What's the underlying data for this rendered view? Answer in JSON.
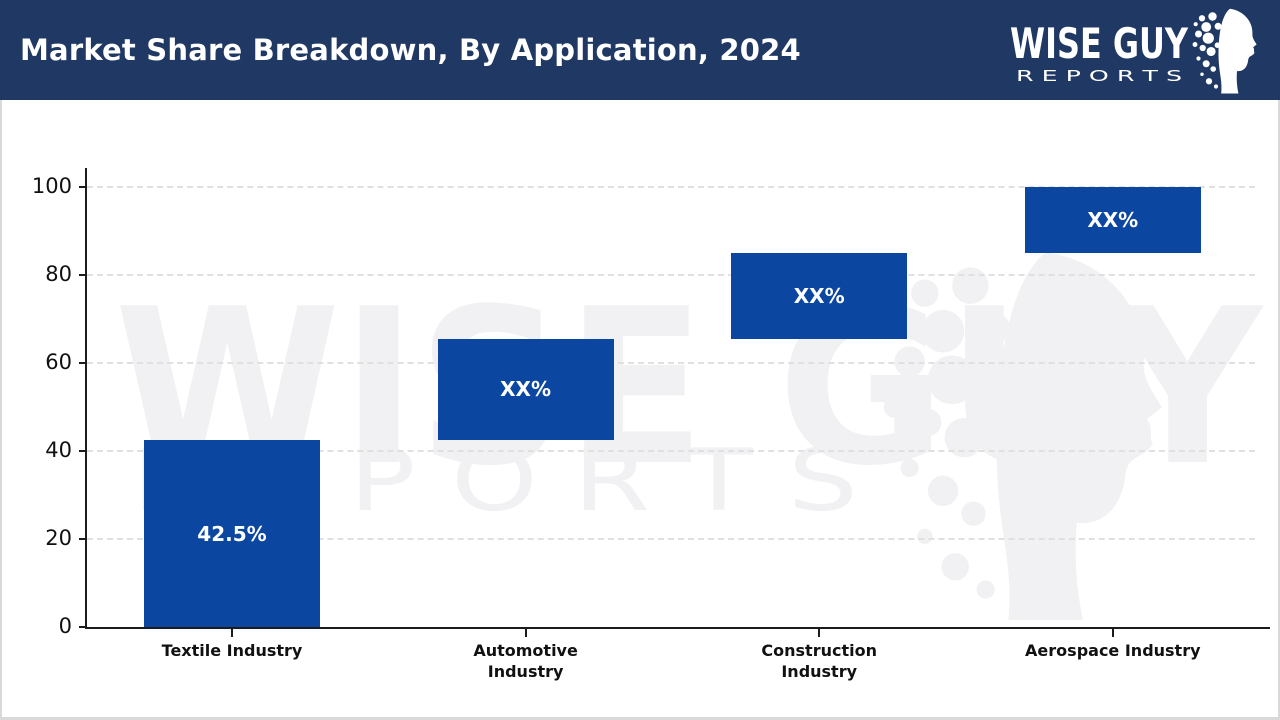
{
  "header": {
    "title": "Market Share Breakdown, By Application, 2024",
    "logo": {
      "line1": "WISE GUY",
      "line2": "R E P O R T S"
    }
  },
  "watermark": {
    "line1": "WISE GUY",
    "line2": "R E P O R T S"
  },
  "chart_data": {
    "type": "bar",
    "subtype": "floating-waterfall",
    "title": "Market Share Breakdown, By Application, 2024",
    "categories": [
      "Textile Industry",
      "Automotive\nIndustry",
      "Construction\nIndustry",
      "Aerospace Industry"
    ],
    "segments": [
      {
        "category": "Textile Industry",
        "from": 0,
        "to": 42.5,
        "label": "42.5%"
      },
      {
        "category": "Automotive Industry",
        "from": 42.5,
        "to": 65.5,
        "label": "XX%"
      },
      {
        "category": "Construction Industry",
        "from": 65.5,
        "to": 85,
        "label": "XX%"
      },
      {
        "category": "Aerospace Industry",
        "from": 85,
        "to": 100,
        "label": "XX%"
      }
    ],
    "xlabel": "",
    "ylabel": "",
    "ylim": [
      0,
      105
    ],
    "yticks": [
      0,
      20,
      40,
      60,
      80,
      100
    ],
    "grid": "horizontal-dashed",
    "legend": "none"
  },
  "colors": {
    "header_bg": "#203864",
    "bar": "#0b46a1",
    "bar_label": "#ffffff",
    "watermark": "#f1f1f4",
    "grid": "#e0e0e0",
    "axis": "#1c1c1c",
    "border": "#d9d9d9"
  }
}
